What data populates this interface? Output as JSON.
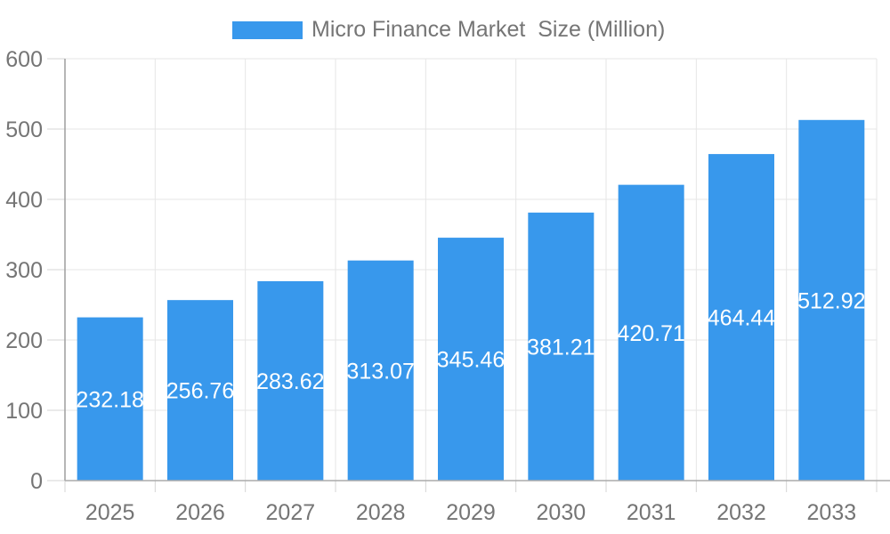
{
  "chart_data": {
    "type": "bar",
    "title": "Micro Finance Market  Size (Million)",
    "legend_position": "top-center",
    "categories": [
      "2025",
      "2026",
      "2027",
      "2028",
      "2029",
      "2030",
      "2031",
      "2032",
      "2033"
    ],
    "series": [
      {
        "name": "Micro Finance Market  Size (Million)",
        "values": [
          232.18,
          256.76,
          283.62,
          313.07,
          345.46,
          381.21,
          420.71,
          464.44,
          512.92
        ]
      }
    ],
    "value_labels": [
      "232.18",
      "256.76",
      "283.62",
      "313.07",
      "345.46",
      "381.21",
      "420.71",
      "464.44",
      "512.92"
    ],
    "xlabel": "",
    "ylabel": "",
    "ylim": [
      0,
      600
    ],
    "yticks": [
      0,
      100,
      200,
      300,
      400,
      500,
      600
    ],
    "grid": true,
    "colors": {
      "bar": "#3898ec",
      "value_label": "#ffffff",
      "axis_text": "#757575",
      "gridline": "#e6e6e6",
      "tick": "#d4d4d4",
      "y_axis_line": "#9e9e9e",
      "x_axis_line": "#ababab"
    }
  }
}
